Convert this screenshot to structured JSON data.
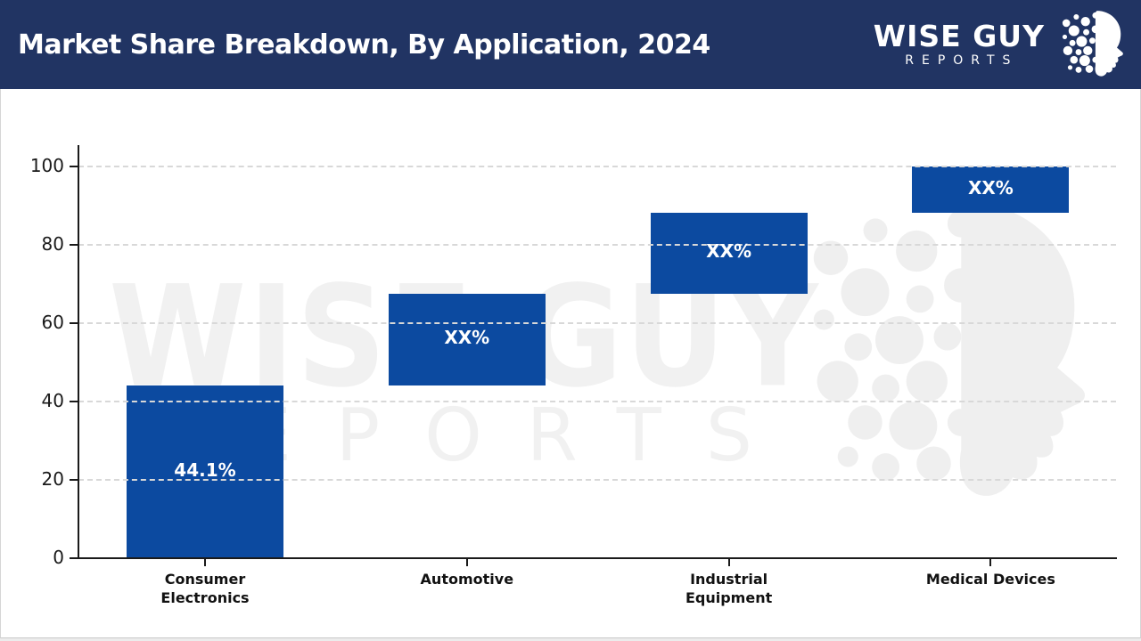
{
  "header": {
    "title": "Market Share Breakdown, By Application, 2024",
    "logo": {
      "line1": "WISE GUY",
      "line2": "REPORTS"
    }
  },
  "watermark": {
    "line1": "WISE GUY",
    "line2": "REPORTS"
  },
  "colors": {
    "header_bg": "#213463",
    "bar_blue": "#0c4aa0",
    "grid_gray": "#d8d8d8",
    "axis_black": "#1a1a1a",
    "watermark_gray": "#f1f1f1",
    "title_white": "#ffffff"
  },
  "chart_data": {
    "type": "bar",
    "variant": "waterfall-floating-bars",
    "title": "Market Share Breakdown, By Application, 2024",
    "categories": [
      [
        "Consumer",
        "Electronics"
      ],
      [
        "Automotive"
      ],
      [
        "Industrial",
        "Equipment"
      ],
      [
        "Medical Devices"
      ]
    ],
    "segments": [
      {
        "name": "Consumer Electronics",
        "start": 0,
        "end": 44.1,
        "label": "44.1%"
      },
      {
        "name": "Automotive",
        "start": 44.1,
        "end": 67.6,
        "label": "XX%"
      },
      {
        "name": "Industrial Equipment",
        "start": 67.6,
        "end": 88.2,
        "label": "XX%"
      },
      {
        "name": "Medical Devices",
        "start": 88.2,
        "end": 100,
        "label": "XX%"
      }
    ],
    "yticks": [
      0,
      20,
      40,
      60,
      80,
      100
    ],
    "ylim": [
      0,
      105.5
    ],
    "xlabel": "",
    "ylabel": "",
    "grid": "horizontal-dashed-above-bars",
    "legend": "none",
    "bar_color": "#0c4aa0"
  }
}
